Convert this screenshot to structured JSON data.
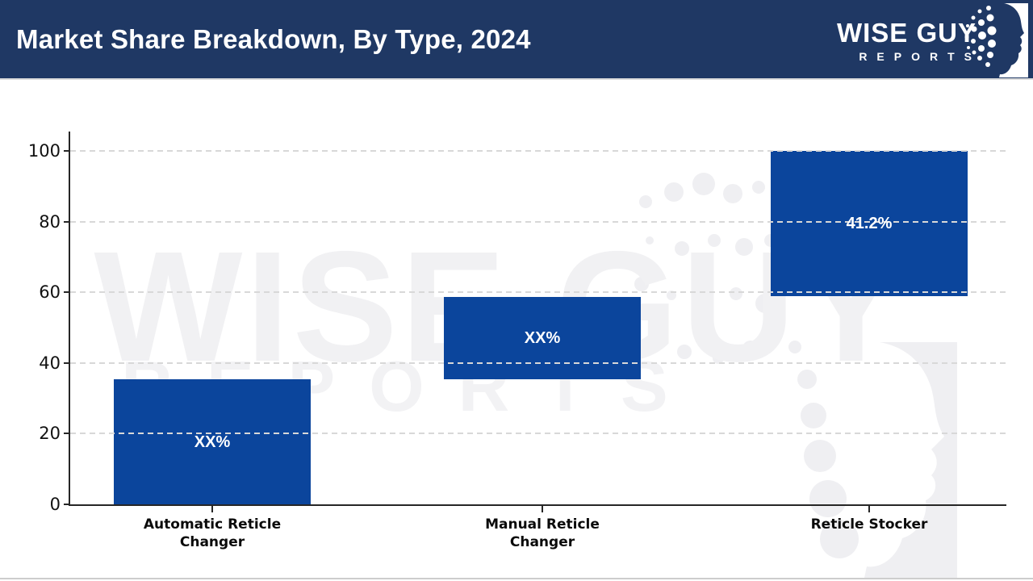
{
  "header": {
    "title": "Market Share Breakdown, By Type, 2024",
    "bg_color": "#1f3864",
    "logo": {
      "brand": "WISE GUY",
      "sub": "REPORTS"
    }
  },
  "watermark": {
    "line1": "WISE GUY",
    "line2": "REPORTS"
  },
  "chart_data": {
    "type": "bar",
    "subtype": "floating-waterfall",
    "title": "Market Share Breakdown, By Type, 2024",
    "categories": [
      "Automatic Reticle Changer",
      "Manual Reticle Changer",
      "Reticle Stocker"
    ],
    "tick_labels": [
      [
        "Automatic Reticle",
        "Changer"
      ],
      [
        "Manual Reticle",
        "Changer"
      ],
      [
        "Reticle Stocker"
      ]
    ],
    "segments": [
      {
        "category": "Automatic Reticle Changer",
        "start": 0,
        "end": 35.3,
        "value_label": "XX%"
      },
      {
        "category": "Manual Reticle Changer",
        "start": 35.3,
        "end": 58.8,
        "value_label": "XX%"
      },
      {
        "category": "Reticle Stocker",
        "start": 58.8,
        "end": 100,
        "value_label": "41.2%"
      }
    ],
    "xlabel": "",
    "ylabel": "",
    "yticks": [
      0,
      20,
      40,
      60,
      80,
      100
    ],
    "ylim": [
      0,
      105.5
    ],
    "grid": "horizontal-dashed",
    "legend": "none",
    "bar_color": "#0b459c",
    "value_label_color": "#ffffff",
    "axis_color": "#262626"
  }
}
